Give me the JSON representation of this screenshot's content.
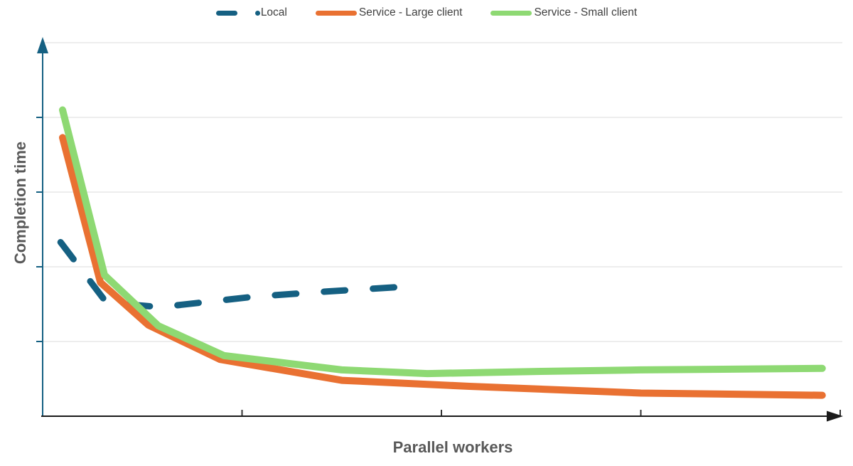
{
  "chart_data": {
    "type": "line",
    "title": "",
    "xlabel": "Parallel workers",
    "ylabel": "Completion time",
    "axis_numeric_labels_visible": false,
    "xlim": [
      0,
      4
    ],
    "ylim": [
      0,
      5
    ],
    "x_ticks": [
      1,
      2,
      3,
      4
    ],
    "y_ticks": [
      1,
      2,
      3,
      4,
      5
    ],
    "grid": "horizontal",
    "legend_position": "top-center",
    "colors": {
      "y_axis": "#156082",
      "x_axis": "#1a1a1a",
      "gridline": "#e2e2e2",
      "x_tick": "#333333",
      "axis_title_text": "#595959",
      "legend_text": "#404040"
    },
    "series": [
      {
        "name": "Local",
        "color": "#156082",
        "style": "dashed",
        "legend_marker": "dash-dot",
        "points": [
          [
            0.09,
            2.33
          ],
          [
            0.32,
            1.52
          ],
          [
            0.59,
            1.46
          ],
          [
            1.06,
            1.6
          ],
          [
            1.43,
            1.67
          ],
          [
            1.79,
            1.73
          ]
        ]
      },
      {
        "name": "Service - Large client",
        "color": "#E97132",
        "style": "solid",
        "legend_marker": "line",
        "points": [
          [
            0.1,
            3.73
          ],
          [
            0.29,
            1.79
          ],
          [
            0.53,
            1.22
          ],
          [
            0.89,
            0.76
          ],
          [
            1.5,
            0.48
          ],
          [
            2.14,
            0.4
          ],
          [
            3.0,
            0.31
          ],
          [
            3.91,
            0.28
          ]
        ]
      },
      {
        "name": "Service - Small client",
        "color": "#8ED973",
        "style": "solid",
        "legend_marker": "line",
        "points": [
          [
            0.1,
            4.1
          ],
          [
            0.31,
            1.89
          ],
          [
            0.58,
            1.21
          ],
          [
            0.91,
            0.81
          ],
          [
            1.5,
            0.62
          ],
          [
            1.93,
            0.57
          ],
          [
            2.5,
            0.6
          ],
          [
            3.0,
            0.62
          ],
          [
            3.91,
            0.64
          ]
        ]
      }
    ]
  }
}
